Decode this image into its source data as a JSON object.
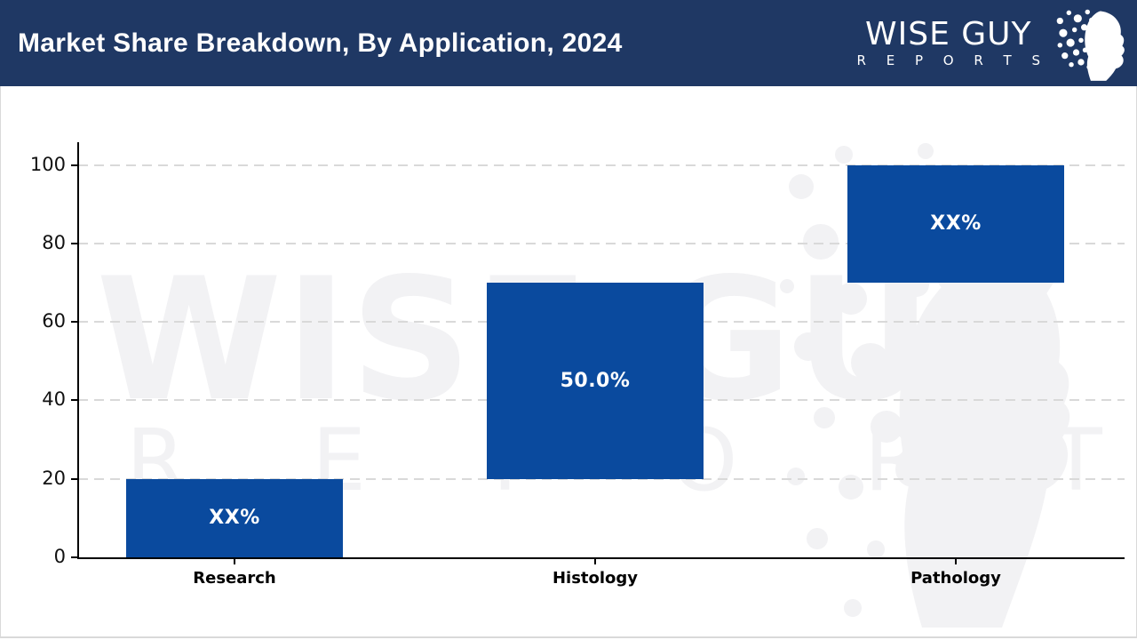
{
  "header": {
    "title": "Market Share Breakdown, By Application, 2024",
    "logo": {
      "line1": "WISE GUY",
      "line2": "R E P O R T S"
    }
  },
  "watermark": {
    "line1": "WISE GUY",
    "line2": "R E P O R T S"
  },
  "chart_data": {
    "type": "bar",
    "subtype": "floating-range-bars",
    "title": "Market Share Breakdown, By Application, 2024",
    "categories": [
      "Research",
      "Histology",
      "Pathology"
    ],
    "bars": [
      {
        "category": "Research",
        "from": 0,
        "to": 20,
        "label": "XX%"
      },
      {
        "category": "Histology",
        "from": 20,
        "to": 70,
        "label": "50.0%"
      },
      {
        "category": "Pathology",
        "from": 70,
        "to": 100,
        "label": "XX%"
      }
    ],
    "xlabel": "",
    "ylabel": "",
    "ylim": [
      0,
      100
    ],
    "yticks": [
      0,
      20,
      40,
      60,
      80,
      100
    ],
    "grid": "horizontal-dashed",
    "legend": "none",
    "colors": {
      "bar": "#0a4a9e",
      "header_bg": "#1f3864",
      "grid": "#d9d9d9",
      "axis": "#000000",
      "bar_label_text": "#ffffff",
      "title_text": "#ffffff",
      "watermark": "#f2f2f4"
    }
  }
}
